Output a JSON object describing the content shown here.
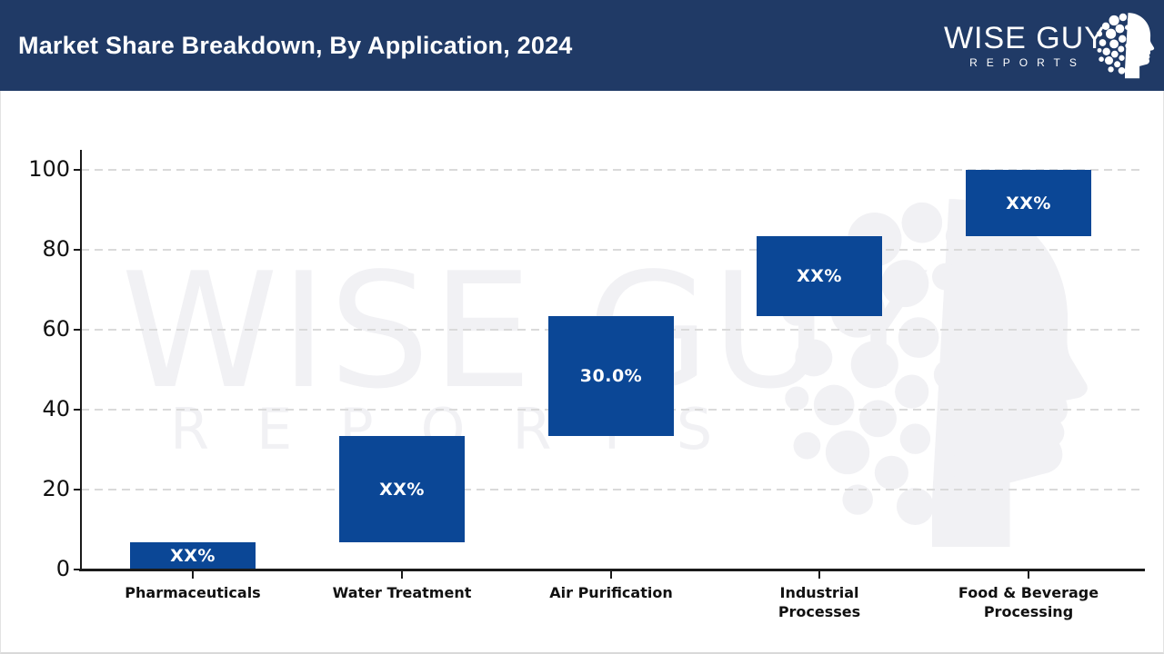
{
  "header": {
    "title": "Market Share Breakdown, By Application, 2024",
    "logo": {
      "wordmark": "WISE GUY",
      "subtitle": "REPORTS"
    }
  },
  "watermark": {
    "line1": "WISE GUY",
    "line2": "REPORTS"
  },
  "colors": {
    "header_bg": "#203A66",
    "bar": "#0B4796",
    "grid": "#DADADA",
    "axis": "#1A1A1A",
    "bar_label": "#FFFFFF",
    "watermark": "#F1F1F4"
  },
  "chart_data": {
    "type": "bar",
    "subtype": "floating-waterfall",
    "title": "Market Share Breakdown, By Application, 2024",
    "categories": [
      "Pharmaceuticals",
      "Water Treatment",
      "Air Purification",
      "Industrial Processes",
      "Food & Beverage Processing"
    ],
    "segments": [
      {
        "category": "Pharmaceuticals",
        "label_lines": [
          "Pharmaceuticals"
        ],
        "start": 0,
        "end": 6.8,
        "value_label": "XX%"
      },
      {
        "category": "Water Treatment",
        "label_lines": [
          "Water Treatment"
        ],
        "start": 6.8,
        "end": 33.4,
        "value_label": "XX%"
      },
      {
        "category": "Air Purification",
        "label_lines": [
          "Air Purification"
        ],
        "start": 33.4,
        "end": 63.4,
        "value_label": "30.0%",
        "value": 30.0
      },
      {
        "category": "Industrial Processes",
        "label_lines": [
          "Industrial",
          "Processes"
        ],
        "start": 63.4,
        "end": 83.4,
        "value_label": "XX%"
      },
      {
        "category": "Food & Beverage Processing",
        "label_lines": [
          "Food & Beverage",
          "Processing"
        ],
        "start": 83.4,
        "end": 100,
        "value_label": "XX%"
      }
    ],
    "ylim": [
      0,
      100
    ],
    "yticks": [
      0,
      20,
      40,
      60,
      80,
      100
    ],
    "xlabel": "",
    "ylabel": "",
    "grid": "horizontal-dashed",
    "legend": null
  }
}
